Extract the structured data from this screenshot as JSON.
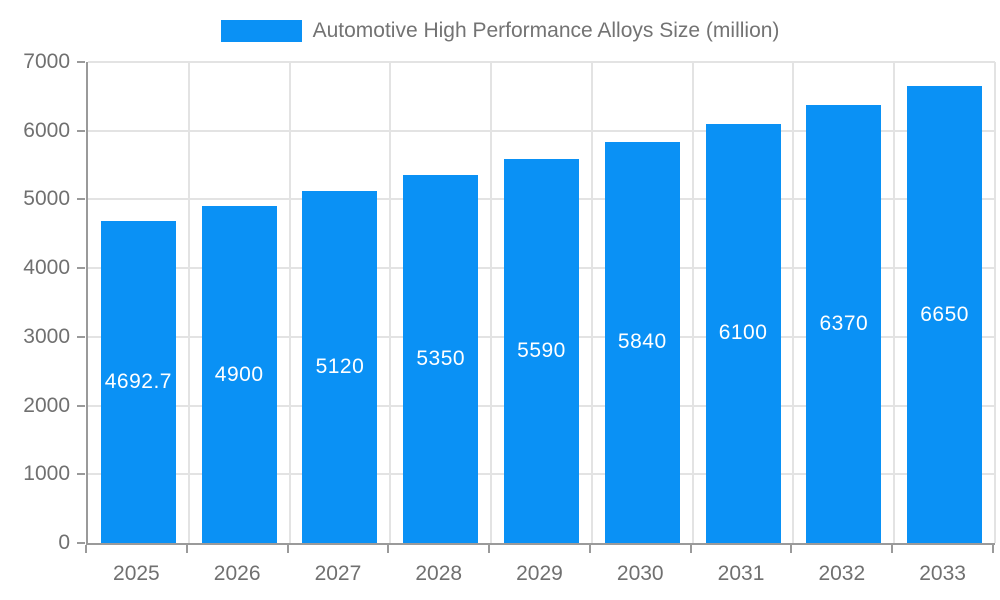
{
  "chart_data": {
    "type": "bar",
    "title": "Automotive High Performance Alloys Size (million)",
    "categories": [
      "2025",
      "2026",
      "2027",
      "2028",
      "2029",
      "2030",
      "2031",
      "2032",
      "2033"
    ],
    "values": [
      4692.7,
      4900,
      5120,
      5350,
      5590,
      5840,
      6100,
      6370,
      6650
    ],
    "value_labels": [
      "4692.7",
      "4900",
      "5120",
      "5350",
      "5590",
      "5840",
      "6100",
      "6370",
      "6650"
    ],
    "xlabel": "",
    "ylabel": "",
    "ylim": [
      0,
      7000
    ],
    "ytick_step": 1000,
    "grid": true,
    "legend_position": "top-center",
    "value_label_position": "center-inside-bar",
    "colors": {
      "bar": "#0a91f5",
      "bar_value_text": "#ffffff",
      "axis_text": "#707070",
      "legend_text": "#737373",
      "grid_line": "#e3e3e3",
      "axis_line": "#9a9a9a",
      "background": "#ffffff"
    }
  }
}
